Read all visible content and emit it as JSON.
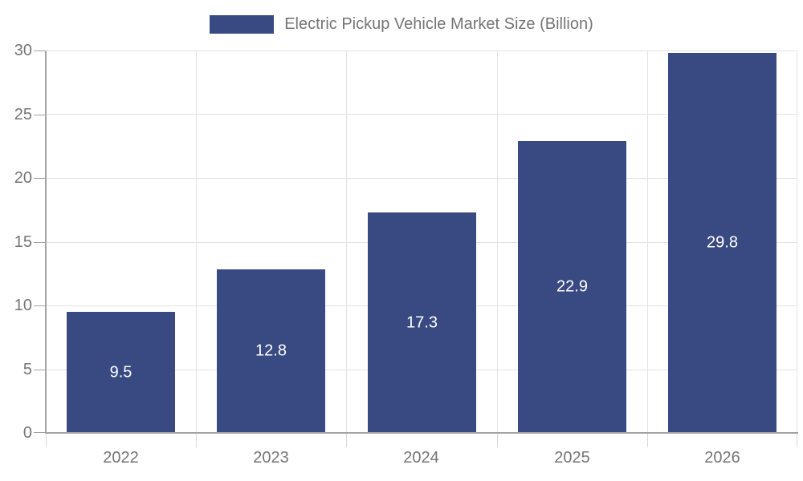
{
  "chart_data": {
    "type": "bar",
    "title": "Electric Pickup Vehicle Market Size (Billion)",
    "legend": [
      "Electric Pickup Vehicle Market Size (Billion)"
    ],
    "legend_position": "top-center",
    "categories": [
      "2022",
      "2023",
      "2024",
      "2025",
      "2026"
    ],
    "series": [
      {
        "name": "Electric Pickup Vehicle Market Size (Billion)",
        "values": [
          9.5,
          12.8,
          17.3,
          22.9,
          29.8
        ]
      }
    ],
    "data_labels": [
      "9.5",
      "12.8",
      "17.3",
      "22.9",
      "29.8"
    ],
    "xlabel": "",
    "ylabel": "",
    "ylim": [
      0,
      30
    ],
    "yticks": [
      0,
      5,
      10,
      15,
      20,
      25,
      30
    ],
    "grid": true,
    "colors": {
      "bar": "#394A82",
      "grid": "#E3E3E3",
      "axis": "#A3A3A3",
      "boundary_tick": "#D9D9D9",
      "tick_text": "#757575",
      "value_label": "#FFFFFF"
    }
  }
}
